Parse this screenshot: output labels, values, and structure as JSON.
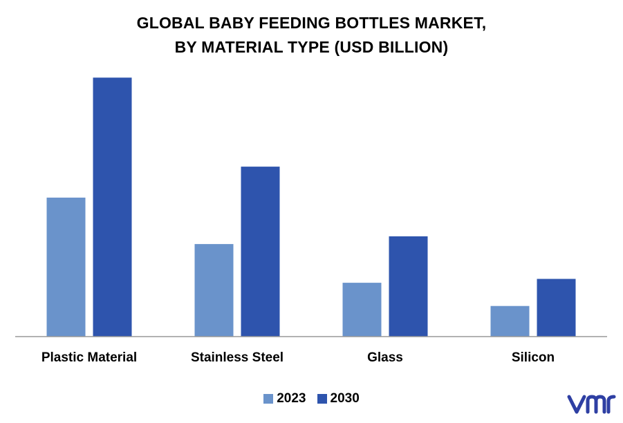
{
  "title_line1": "GLOBAL BABY FEEDING BOTTLES MARKET,",
  "title_line2": "BY MATERIAL TYPE (USD BILLION)",
  "colors": {
    "series_2023": "#6a93cb",
    "series_2030": "#2e54ad",
    "axis": "#999999",
    "logo": "#2e3fa3"
  },
  "logo_icon": "vmr-logo",
  "chart_data": {
    "type": "bar",
    "title": "GLOBAL BABY FEEDING BOTTLES MARKET, BY MATERIAL TYPE (USD BILLION)",
    "categories": [
      "Plastic Material",
      "Stainless Steel",
      "Glass",
      "Silicon"
    ],
    "series": [
      {
        "name": "2023",
        "values": [
          3.6,
          2.4,
          1.4,
          0.8
        ]
      },
      {
        "name": "2030",
        "values": [
          6.7,
          4.4,
          2.6,
          1.5
        ]
      }
    ],
    "ylim": [
      0,
      7
    ],
    "grid": false,
    "legend": "bottom-center",
    "xlabel": "",
    "ylabel": ""
  }
}
